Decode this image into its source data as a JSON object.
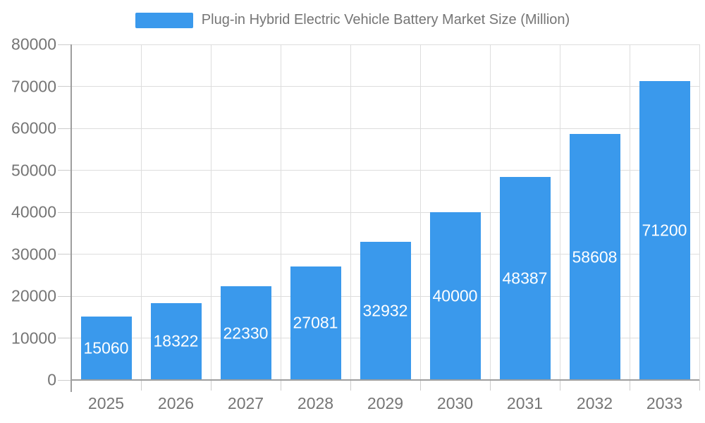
{
  "legend": {
    "label": "Plug-in Hybrid Electric Vehicle Battery Market Size (Million)"
  },
  "colors": {
    "bar": "#3a99ec",
    "value_label": "#ffffff",
    "axis_text": "#757575",
    "gridline": "#dddddd",
    "tick": "#cccccc",
    "axis_line": "#9e9e9e",
    "background": "#ffffff"
  },
  "chart_data": {
    "type": "bar",
    "title": "Plug-in Hybrid Electric Vehicle Battery Market Size (Million)",
    "series": [
      {
        "name": "Plug-in Hybrid Electric Vehicle Battery Market Size (Million)",
        "values": [
          15060,
          18322,
          22330,
          27081,
          32932,
          40000,
          48387,
          58608,
          71200
        ]
      }
    ],
    "categories": [
      "2025",
      "2026",
      "2027",
      "2028",
      "2029",
      "2030",
      "2031",
      "2032",
      "2033"
    ],
    "value_labels": [
      "15060",
      "18322",
      "22330",
      "27081",
      "32932",
      "40000",
      "48387",
      "58608",
      "71200"
    ],
    "xlabel": "",
    "ylabel": "",
    "ylim": [
      0,
      80000
    ],
    "yticks": [
      0,
      10000,
      20000,
      30000,
      40000,
      50000,
      60000,
      70000,
      80000
    ],
    "ytick_labels": [
      "0",
      "10000",
      "20000",
      "30000",
      "40000",
      "50000",
      "60000",
      "70000",
      "80000"
    ],
    "grid": true,
    "legend_position": "top-center",
    "value_labels_inside_bars": true
  }
}
